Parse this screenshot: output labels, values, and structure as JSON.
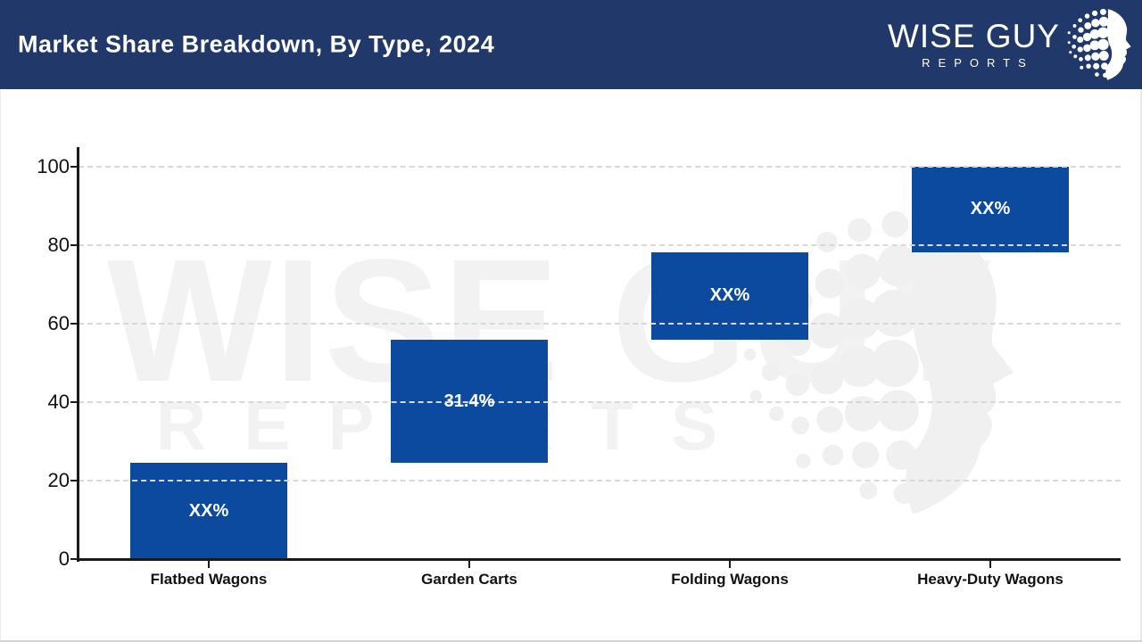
{
  "header": {
    "title": "Market Share Breakdown, By Type, 2024",
    "logo": {
      "line1": "WISE GUY",
      "line2": "REPORTS"
    }
  },
  "watermark": {
    "line1": "WISE GUY",
    "line2": "REPORTS"
  },
  "colors": {
    "header_bg": "#21386B",
    "bar": "#0B4A9E",
    "grid": "#D8D8D8",
    "axis": "#1A1A1A",
    "watermark": "#F2F2F2",
    "page_border": "#D4D4D4"
  },
  "chart_data": {
    "type": "bar",
    "subtype": "waterfall",
    "title": "Market Share Breakdown, By Type, 2024",
    "categories": [
      "Flatbed Wagons",
      "Garden Carts",
      "Folding Wagons",
      "Heavy-Duty Wagons"
    ],
    "segments": [
      {
        "category": "Flatbed Wagons",
        "start": 0,
        "end": 24.5,
        "value": 24.5,
        "label": "XX%"
      },
      {
        "category": "Garden Carts",
        "start": 24.5,
        "end": 55.9,
        "value": 31.4,
        "label": "31.4%"
      },
      {
        "category": "Folding Wagons",
        "start": 55.9,
        "end": 78.2,
        "value": 22.3,
        "label": "XX%"
      },
      {
        "category": "Heavy-Duty Wagons",
        "start": 78.2,
        "end": 100,
        "value": 21.8,
        "label": "XX%"
      }
    ],
    "xlabel": "",
    "ylabel": "",
    "yticks": [
      0,
      20,
      40,
      60,
      80,
      100
    ],
    "ylim": [
      0,
      105
    ],
    "grid": "horizontal-dashed-drawn-above-bars",
    "legend": "none",
    "bar_color": "#0B4A9E"
  }
}
